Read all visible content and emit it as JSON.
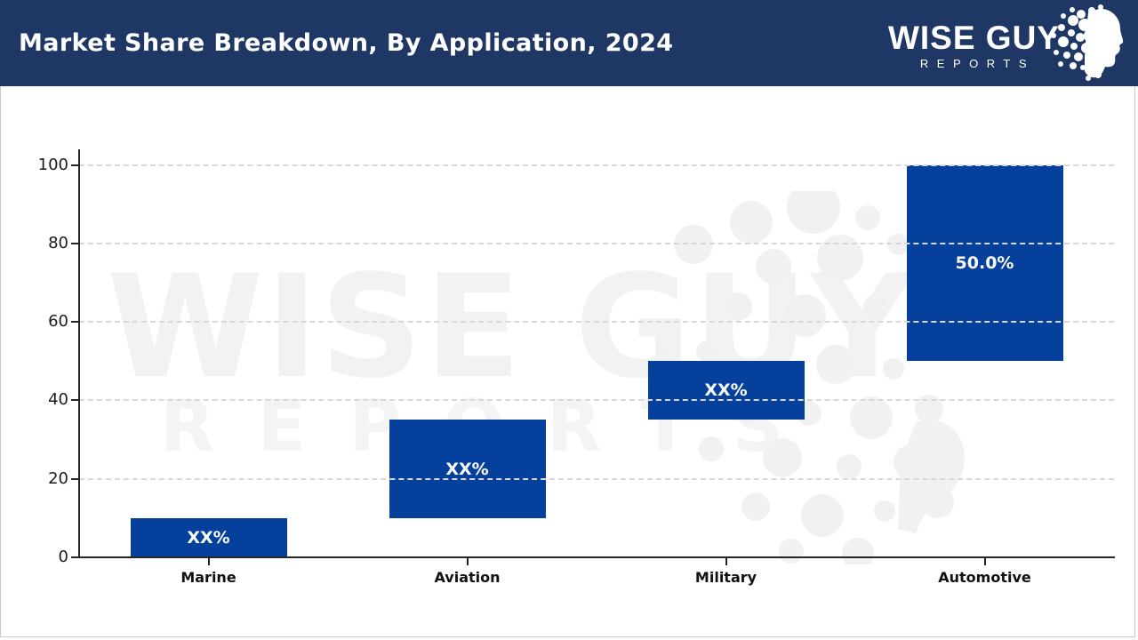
{
  "header": {
    "logo": {
      "line1": "WISE GUY",
      "line2": "REPORTS"
    }
  },
  "watermark": {
    "line1": "WISE GUY",
    "line2": "REPORTS"
  },
  "chart_data": {
    "type": "bar",
    "subtype": "waterfall",
    "title": "Market Share Breakdown, By Application, 2024",
    "xlabel": "",
    "ylabel": "",
    "categories": [
      "Marine",
      "Aviation",
      "Military",
      "Automotive"
    ],
    "segments": [
      {
        "category": "Marine",
        "start": 0,
        "end": 10,
        "label": "XX%"
      },
      {
        "category": "Aviation",
        "start": 10,
        "end": 35,
        "label": "XX%"
      },
      {
        "category": "Military",
        "start": 35,
        "end": 50,
        "label": "XX%"
      },
      {
        "category": "Automotive",
        "start": 50,
        "end": 100,
        "label": "50.0%"
      }
    ],
    "yticks": [
      0,
      20,
      40,
      60,
      80,
      100
    ],
    "ylim": [
      0,
      104
    ],
    "grid": "horizontal-dashed",
    "legend": "none",
    "bar_color": "#05419c"
  },
  "colors": {
    "header_bg": "#1f3765",
    "bar": "#05419c",
    "gridline": "#d8d8d8",
    "axis": "#262626",
    "watermark": "#f2f2f2",
    "frame_border": "#c9c9c9"
  }
}
